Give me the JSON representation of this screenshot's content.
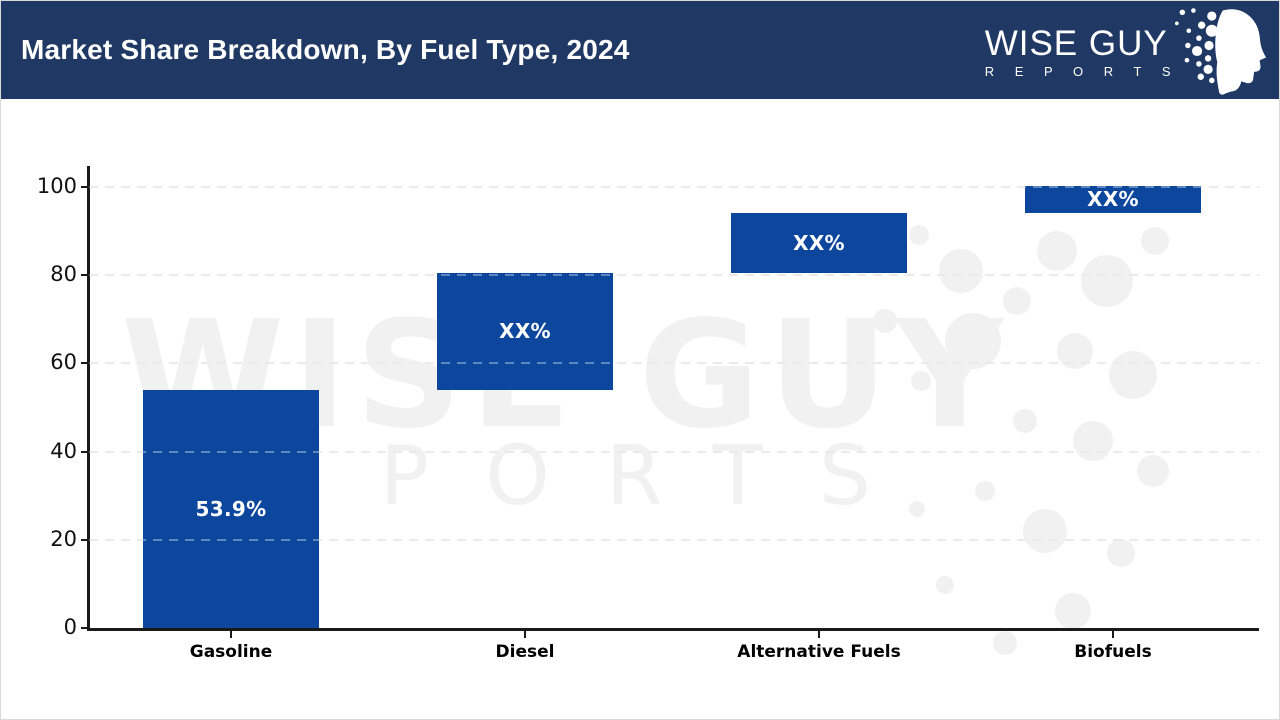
{
  "header": {
    "title": "Market Share Breakdown, By Fuel Type, 2024",
    "bg_color": "#1f3864",
    "logo": {
      "line1": "WISE GUY",
      "line2": "R E P O R T S"
    }
  },
  "watermark": {
    "line1": "WISE GUY",
    "line2": "REPORTS"
  },
  "chart_data": {
    "type": "bar",
    "subtype": "waterfall",
    "title": "Market Share Breakdown, By Fuel Type, 2024",
    "categories": [
      "Gasoline",
      "Diesel",
      "Alternative Fuels",
      "Biofuels"
    ],
    "segments": [
      {
        "category": "Gasoline",
        "start": 0,
        "end": 53.9,
        "label": "53.9%"
      },
      {
        "category": "Diesel",
        "start": 53.9,
        "end": 80.6,
        "label": "XX%"
      },
      {
        "category": "Alternative Fuels",
        "start": 80.6,
        "end": 94.2,
        "label": "XX%"
      },
      {
        "category": "Biofuels",
        "start": 94.2,
        "end": 100.2,
        "label": "XX%"
      }
    ],
    "yticks": [
      0,
      20,
      40,
      60,
      80,
      100
    ],
    "ylim": [
      0,
      105
    ],
    "xlabel": "",
    "ylabel": "",
    "grid": "horizontal-dashed",
    "legend": "none",
    "bar_color": "#0c479d",
    "bar_label_color": "#ffffff",
    "axis_color": "#1a1a1a"
  }
}
